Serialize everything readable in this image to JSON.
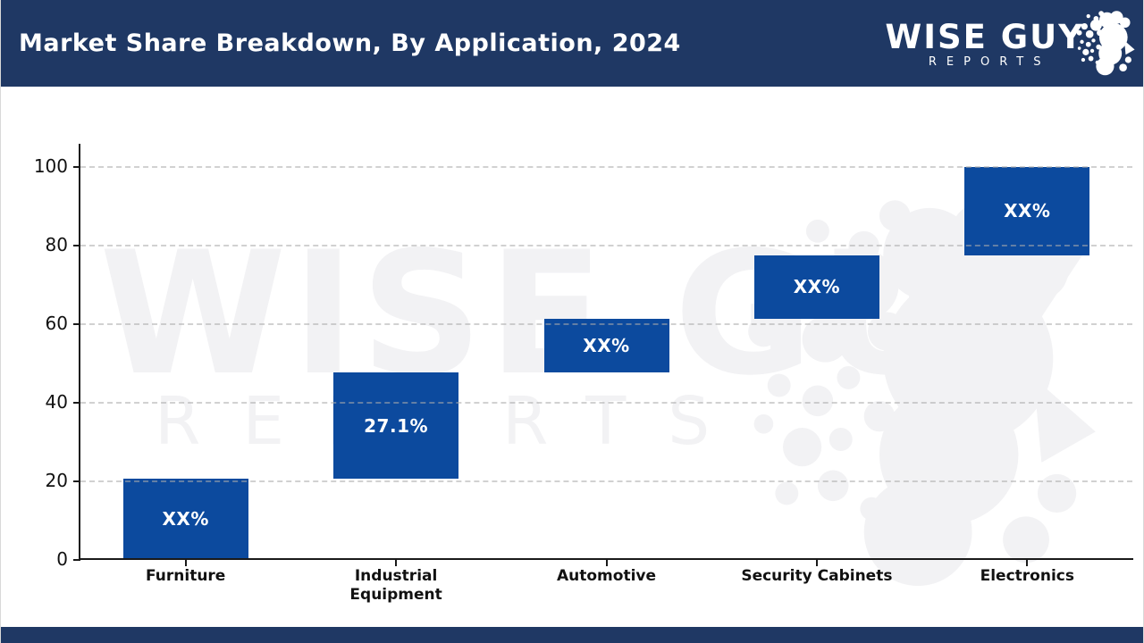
{
  "header": {
    "title": "Market Share Breakdown, By Application, 2024",
    "bg_color": "#1f3864",
    "logo": {
      "line1": "WISE GUY",
      "line2": "REPORTS"
    }
  },
  "watermark": {
    "line1": "WISE GUY",
    "line2": "REPORTS"
  },
  "colors": {
    "header_bg": "#1f3864",
    "bar_blue": "#0c4a9e",
    "watermark_gray": "#f2f2f4",
    "gridline_gray": "#d9d9d9",
    "footer_bg": "#1f3864"
  },
  "chart_data": {
    "type": "bar",
    "subtype": "waterfall-breakdown",
    "title": "Market Share Breakdown, By Application, 2024",
    "categories": [
      "Furniture",
      "Industrial Equipment",
      "Automotive",
      "Security Cabinets",
      "Electronics"
    ],
    "segments": [
      {
        "category": "Furniture",
        "start": 0,
        "end": 20.5,
        "value": 20.5,
        "label": "XX%"
      },
      {
        "category": "Industrial Equipment",
        "start": 20.5,
        "end": 47.6,
        "value": 27.1,
        "label": "27.1%"
      },
      {
        "category": "Automotive",
        "start": 47.6,
        "end": 61.3,
        "value": 13.7,
        "label": "XX%"
      },
      {
        "category": "Security Cabinets",
        "start": 61.3,
        "end": 77.5,
        "value": 16.2,
        "label": "XX%"
      },
      {
        "category": "Electronics",
        "start": 77.5,
        "end": 100,
        "value": 22.5,
        "label": "XX%"
      }
    ],
    "xlabel": "",
    "ylabel": "",
    "ylim": [
      0,
      100
    ],
    "yticks": [
      0,
      20,
      40,
      60,
      80,
      100
    ],
    "grid": "horizontal-dashed-over-bars",
    "legend": "none",
    "bar_color": "#0c4a9e",
    "bar_label_color": "#ffffff"
  }
}
